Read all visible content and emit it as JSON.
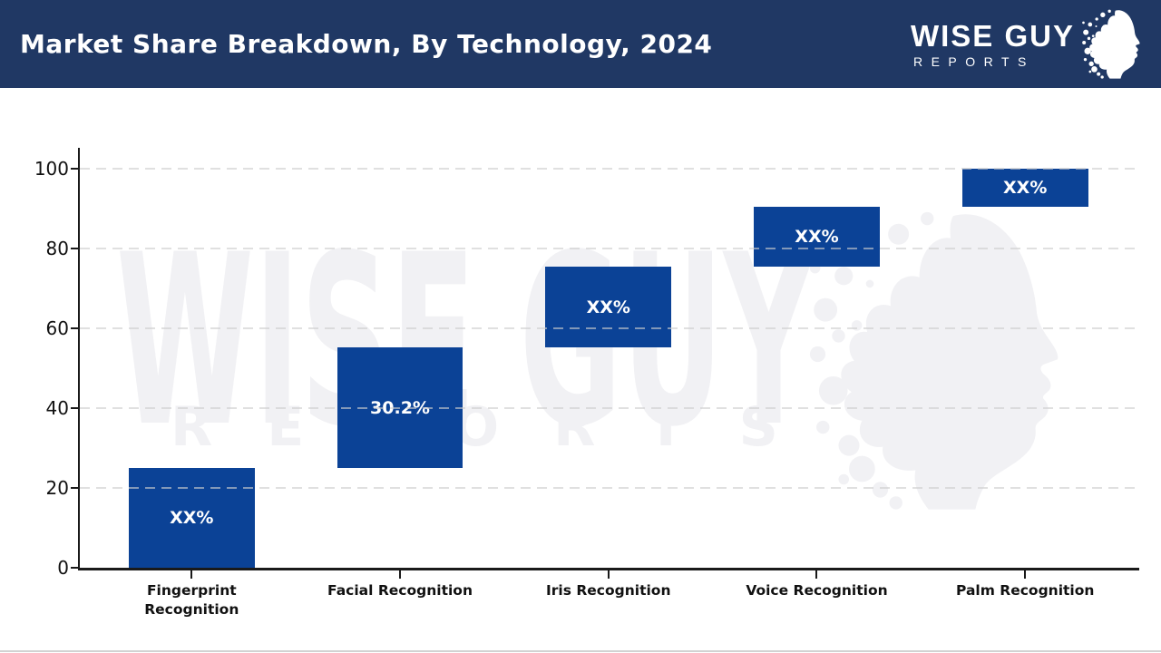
{
  "header": {
    "title": "Market Share Breakdown, By Technology, 2024",
    "bg_color": "#203864",
    "logo": {
      "name": "Wise Guy Reports",
      "line1": "WISE GUY",
      "line2": "REPORTS"
    }
  },
  "watermark": {
    "line1": "WISE GUY",
    "line2": "REPORTS"
  },
  "chart_data": {
    "type": "bar",
    "subtype": "floating-waterfall",
    "title": "Market Share Breakdown, By Technology, 2024",
    "categories": [
      "Fingerprint Recognition",
      "Facial Recognition",
      "Iris Recognition",
      "Voice Recognition",
      "Palm Recognition"
    ],
    "segments": [
      {
        "category": "Fingerprint Recognition",
        "start": 0,
        "end": 25,
        "label": "XX%"
      },
      {
        "category": "Facial Recognition",
        "start": 25,
        "end": 55.2,
        "label": "30.2%",
        "value": 30.2
      },
      {
        "category": "Iris Recognition",
        "start": 55.2,
        "end": 75.4,
        "label": "XX%"
      },
      {
        "category": "Voice Recognition",
        "start": 75.4,
        "end": 90.5,
        "label": "XX%"
      },
      {
        "category": "Palm Recognition",
        "start": 90.5,
        "end": 100,
        "label": "XX%"
      }
    ],
    "yticks": [
      0,
      20,
      40,
      60,
      80,
      100
    ],
    "ylim": [
      0,
      100
    ],
    "xlabel": "",
    "ylabel": "",
    "grid": "horizontal-dashed",
    "legend": "none",
    "bar_color": "#0b4296",
    "bar_label_color": "#ffffff",
    "axis_color": "#1a1a1a"
  }
}
